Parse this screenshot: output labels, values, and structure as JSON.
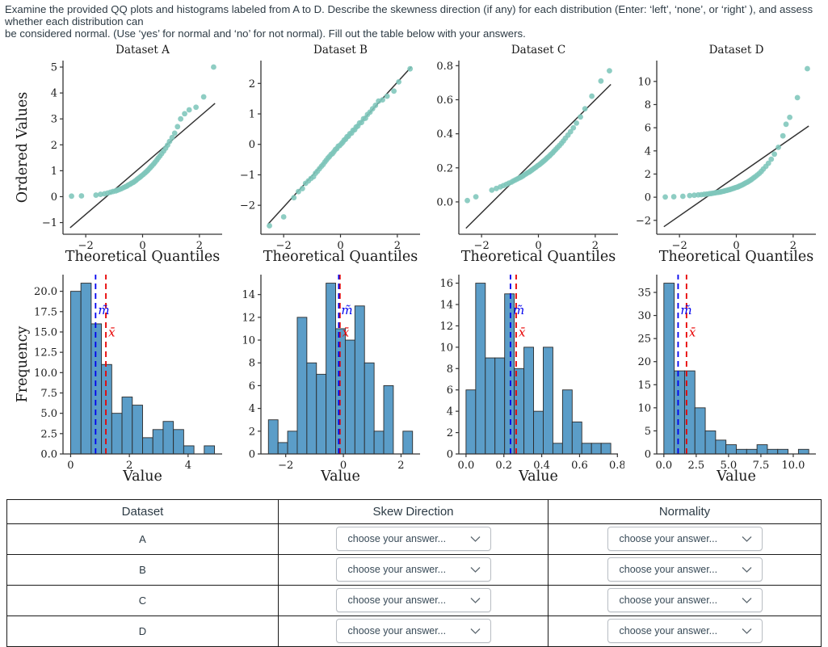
{
  "instructions": {
    "line1": "Examine the provided QQ plots and histograms labeled from A to D. Describe the skewness direction (if any) for each distribution (Enter: ‘left’, ‘none’, or ‘right’ ), and assess",
    "line2": "whether each distribution can",
    "line3": "be considered normal. (Use ‘yes’ for normal and ‘no’ for not normal). Fill out the table below with your answers."
  },
  "colors": {
    "point_teal": "#7EC6BB",
    "qq_line": "#333333",
    "bar_fill": "#5B9DC8",
    "bar_edge": "#2b2b2b",
    "median_blue": "#0000EE",
    "mean_red": "#E80000",
    "text_dark": "#2D3B45"
  },
  "chart_data": [
    {
      "type": "scatter",
      "chart_kind": "qq-plot",
      "title": "Dataset A",
      "xlabel": "Theoretical Quantiles",
      "ylabel": "Ordered Values",
      "xlim": [
        -2.8,
        2.8
      ],
      "ylim": [
        -1.45,
        5.25
      ],
      "xticks": {
        "v": [
          -2,
          0,
          2
        ],
        "l": [
          "−2",
          "0",
          "2"
        ]
      },
      "yticks": {
        "v": [
          -1,
          0,
          1,
          2,
          3,
          4,
          5
        ],
        "l": [
          "−1",
          "0",
          "1",
          "2",
          "3",
          "4",
          "5"
        ]
      },
      "line": [
        [
          -2.55,
          -1.2
        ],
        [
          2.55,
          3.6
        ]
      ],
      "points": [
        [
          -2.5,
          0.02
        ],
        [
          -2.15,
          0.03
        ],
        [
          -1.64,
          0.06
        ],
        [
          -1.48,
          0.09
        ],
        [
          -1.34,
          0.11
        ],
        [
          -1.23,
          0.14
        ],
        [
          -1.13,
          0.17
        ],
        [
          -1.04,
          0.2
        ],
        [
          -0.95,
          0.22
        ],
        [
          -0.88,
          0.25
        ],
        [
          -0.81,
          0.28
        ],
        [
          -0.74,
          0.31
        ],
        [
          -0.67,
          0.35
        ],
        [
          -0.61,
          0.38
        ],
        [
          -0.55,
          0.41
        ],
        [
          -0.5,
          0.45
        ],
        [
          -0.44,
          0.48
        ],
        [
          -0.39,
          0.52
        ],
        [
          -0.33,
          0.55
        ],
        [
          -0.28,
          0.59
        ],
        [
          -0.23,
          0.63
        ],
        [
          -0.18,
          0.68
        ],
        [
          -0.13,
          0.72
        ],
        [
          -0.08,
          0.76
        ],
        [
          -0.03,
          0.81
        ],
        [
          0.03,
          0.86
        ],
        [
          0.08,
          0.91
        ],
        [
          0.13,
          0.96
        ],
        [
          0.18,
          1.01
        ],
        [
          0.23,
          1.07
        ],
        [
          0.28,
          1.13
        ],
        [
          0.33,
          1.19
        ],
        [
          0.39,
          1.26
        ],
        [
          0.44,
          1.33
        ],
        [
          0.5,
          1.41
        ],
        [
          0.55,
          1.49
        ],
        [
          0.61,
          1.57
        ],
        [
          0.67,
          1.66
        ],
        [
          0.74,
          1.76
        ],
        [
          0.81,
          1.87
        ],
        [
          0.88,
          1.99
        ],
        [
          0.95,
          2.13
        ],
        [
          1.04,
          2.28
        ],
        [
          1.13,
          2.45
        ],
        [
          1.23,
          2.7
        ],
        [
          1.34,
          3.0
        ],
        [
          1.48,
          3.2
        ],
        [
          1.64,
          3.35
        ],
        [
          1.88,
          3.45
        ],
        [
          2.15,
          3.85
        ],
        [
          2.5,
          5.0
        ]
      ]
    },
    {
      "type": "scatter",
      "chart_kind": "qq-plot",
      "title": "Dataset B",
      "xlabel": "Theoretical Quantiles",
      "xlim": [
        -2.8,
        2.8
      ],
      "ylim": [
        -2.95,
        2.75
      ],
      "xticks": {
        "v": [
          -2,
          0,
          2
        ],
        "l": [
          "−2",
          "0",
          "2"
        ]
      },
      "yticks": {
        "v": [
          -2,
          -1,
          0,
          1,
          2
        ],
        "l": [
          "−2",
          "−1",
          "0",
          "1",
          "2"
        ]
      },
      "line": [
        [
          -2.55,
          -2.62
        ],
        [
          2.5,
          2.55
        ]
      ],
      "points": [
        [
          -2.5,
          -2.67
        ],
        [
          -2.0,
          -2.38
        ],
        [
          -1.64,
          -1.75
        ],
        [
          -1.48,
          -1.55
        ],
        [
          -1.34,
          -1.45
        ],
        [
          -1.23,
          -1.28
        ],
        [
          -1.13,
          -1.2
        ],
        [
          -1.04,
          -1.12
        ],
        [
          -0.95,
          -1.06
        ],
        [
          -0.88,
          -0.95
        ],
        [
          -0.81,
          -0.88
        ],
        [
          -0.74,
          -0.8
        ],
        [
          -0.67,
          -0.72
        ],
        [
          -0.61,
          -0.66
        ],
        [
          -0.55,
          -0.58
        ],
        [
          -0.5,
          -0.52
        ],
        [
          -0.44,
          -0.45
        ],
        [
          -0.39,
          -0.4
        ],
        [
          -0.33,
          -0.33
        ],
        [
          -0.28,
          -0.3
        ],
        [
          -0.23,
          -0.24
        ],
        [
          -0.18,
          -0.17
        ],
        [
          -0.13,
          -0.14
        ],
        [
          -0.08,
          -0.06
        ],
        [
          -0.03,
          -0.04
        ],
        [
          0.03,
          0.02
        ],
        [
          0.08,
          0.07
        ],
        [
          0.13,
          0.14
        ],
        [
          0.18,
          0.17
        ],
        [
          0.23,
          0.25
        ],
        [
          0.28,
          0.27
        ],
        [
          0.33,
          0.35
        ],
        [
          0.39,
          0.37
        ],
        [
          0.44,
          0.46
        ],
        [
          0.5,
          0.48
        ],
        [
          0.55,
          0.57
        ],
        [
          0.61,
          0.6
        ],
        [
          0.67,
          0.7
        ],
        [
          0.74,
          0.72
        ],
        [
          0.81,
          0.84
        ],
        [
          0.88,
          0.86
        ],
        [
          0.95,
          0.98
        ],
        [
          1.04,
          1.06
        ],
        [
          1.13,
          1.17
        ],
        [
          1.23,
          1.28
        ],
        [
          1.34,
          1.42
        ],
        [
          1.48,
          1.46
        ],
        [
          1.64,
          1.58
        ],
        [
          1.88,
          1.75
        ],
        [
          2.05,
          2.05
        ],
        [
          2.45,
          2.48
        ]
      ]
    },
    {
      "type": "scatter",
      "chart_kind": "qq-plot",
      "title": "Dataset C",
      "xlabel": "Theoretical Quantiles",
      "xlim": [
        -2.8,
        2.8
      ],
      "ylim": [
        -0.19,
        0.83
      ],
      "xticks": {
        "v": [
          -2,
          0,
          2
        ],
        "l": [
          "−2",
          "0",
          "2"
        ]
      },
      "yticks": {
        "v": [
          0.0,
          0.2,
          0.4,
          0.6,
          0.8
        ],
        "l": [
          "0.0",
          "0.2",
          "0.4",
          "0.6",
          "0.8"
        ]
      },
      "line": [
        [
          -2.55,
          -0.155
        ],
        [
          2.55,
          0.69
        ]
      ],
      "points": [
        [
          -2.5,
          0.008
        ],
        [
          -2.2,
          0.03
        ],
        [
          -1.64,
          0.069
        ],
        [
          -1.48,
          0.079
        ],
        [
          -1.34,
          0.088
        ],
        [
          -1.23,
          0.096
        ],
        [
          -1.13,
          0.103
        ],
        [
          -1.04,
          0.11
        ],
        [
          -0.95,
          0.116
        ],
        [
          -0.88,
          0.123
        ],
        [
          -0.81,
          0.129
        ],
        [
          -0.74,
          0.135
        ],
        [
          -0.67,
          0.141
        ],
        [
          -0.61,
          0.146
        ],
        [
          -0.55,
          0.152
        ],
        [
          -0.5,
          0.158
        ],
        [
          -0.44,
          0.164
        ],
        [
          -0.39,
          0.17
        ],
        [
          -0.33,
          0.175
        ],
        [
          -0.28,
          0.181
        ],
        [
          -0.23,
          0.187
        ],
        [
          -0.18,
          0.193
        ],
        [
          -0.13,
          0.199
        ],
        [
          -0.08,
          0.205
        ],
        [
          -0.03,
          0.212
        ],
        [
          0.03,
          0.218
        ],
        [
          0.08,
          0.225
        ],
        [
          0.13,
          0.232
        ],
        [
          0.18,
          0.239
        ],
        [
          0.23,
          0.246
        ],
        [
          0.28,
          0.254
        ],
        [
          0.33,
          0.262
        ],
        [
          0.39,
          0.27
        ],
        [
          0.44,
          0.279
        ],
        [
          0.5,
          0.288
        ],
        [
          0.55,
          0.298
        ],
        [
          0.61,
          0.308
        ],
        [
          0.67,
          0.319
        ],
        [
          0.74,
          0.331
        ],
        [
          0.81,
          0.344
        ],
        [
          0.88,
          0.358
        ],
        [
          0.95,
          0.374
        ],
        [
          1.04,
          0.392
        ],
        [
          1.13,
          0.412
        ],
        [
          1.23,
          0.435
        ],
        [
          1.34,
          0.463
        ],
        [
          1.48,
          0.499
        ],
        [
          1.64,
          0.547
        ],
        [
          1.88,
          0.621
        ],
        [
          2.2,
          0.71
        ],
        [
          2.5,
          0.77
        ]
      ]
    },
    {
      "type": "scatter",
      "chart_kind": "qq-plot",
      "title": "Dataset D",
      "xlabel": "Theoretical Quantiles",
      "xlim": [
        -2.8,
        2.8
      ],
      "ylim": [
        -3.2,
        11.8
      ],
      "xticks": {
        "v": [
          -2,
          0,
          2
        ],
        "l": [
          "−2",
          "0",
          "2"
        ]
      },
      "yticks": {
        "v": [
          -2,
          0,
          2,
          4,
          6,
          8,
          10
        ],
        "l": [
          "−2",
          "0",
          "2",
          "4",
          "6",
          "8",
          "10"
        ]
      },
      "line": [
        [
          -2.55,
          -2.55
        ],
        [
          2.55,
          6.15
        ]
      ],
      "points": [
        [
          -2.5,
          0.02
        ],
        [
          -2.2,
          0.04
        ],
        [
          -1.88,
          0.08
        ],
        [
          -1.64,
          0.14
        ],
        [
          -1.48,
          0.17
        ],
        [
          -1.34,
          0.2
        ],
        [
          -1.23,
          0.22
        ],
        [
          -1.13,
          0.25
        ],
        [
          -1.04,
          0.27
        ],
        [
          -0.95,
          0.3
        ],
        [
          -0.88,
          0.32
        ],
        [
          -0.81,
          0.35
        ],
        [
          -0.74,
          0.38
        ],
        [
          -0.67,
          0.41
        ],
        [
          -0.61,
          0.43
        ],
        [
          -0.55,
          0.46
        ],
        [
          -0.5,
          0.49
        ],
        [
          -0.44,
          0.52
        ],
        [
          -0.39,
          0.56
        ],
        [
          -0.33,
          0.59
        ],
        [
          -0.28,
          0.63
        ],
        [
          -0.23,
          0.66
        ],
        [
          -0.18,
          0.7
        ],
        [
          -0.13,
          0.74
        ],
        [
          -0.08,
          0.78
        ],
        [
          -0.03,
          0.83
        ],
        [
          0.03,
          0.87
        ],
        [
          0.08,
          0.92
        ],
        [
          0.13,
          0.98
        ],
        [
          0.18,
          1.03
        ],
        [
          0.23,
          1.09
        ],
        [
          0.28,
          1.16
        ],
        [
          0.33,
          1.23
        ],
        [
          0.39,
          1.3
        ],
        [
          0.44,
          1.38
        ],
        [
          0.5,
          1.47
        ],
        [
          0.55,
          1.56
        ],
        [
          0.61,
          1.67
        ],
        [
          0.67,
          1.78
        ],
        [
          0.74,
          1.92
        ],
        [
          0.81,
          2.06
        ],
        [
          0.88,
          2.23
        ],
        [
          0.95,
          2.43
        ],
        [
          1.04,
          2.66
        ],
        [
          1.13,
          2.93
        ],
        [
          1.23,
          3.28
        ],
        [
          1.34,
          3.72
        ],
        [
          1.48,
          4.31
        ],
        [
          1.64,
          5.3
        ],
        [
          1.75,
          6.3
        ],
        [
          1.88,
          6.9
        ],
        [
          2.15,
          8.6
        ],
        [
          2.5,
          11.1
        ]
      ]
    },
    {
      "type": "bar",
      "chart_kind": "histogram",
      "xlabel": "Value",
      "ylabel": "Frequency",
      "xlim": [
        -0.26,
        5.16
      ],
      "ylim": [
        0,
        22.05
      ],
      "xticks": {
        "v": [
          0,
          2,
          4
        ],
        "l": [
          "0",
          "2",
          "4"
        ]
      },
      "yticks": {
        "v": [
          0,
          2.5,
          5,
          7.5,
          10,
          12.5,
          15,
          17.5,
          20
        ],
        "l": [
          "0.0",
          "2.5",
          "5.0",
          "7.5",
          "10.0",
          "12.5",
          "15.0",
          "17.5",
          "20.0"
        ]
      },
      "bins": {
        "start": 0.0,
        "width": 0.35,
        "counts": [
          20,
          21,
          16,
          11,
          5,
          7,
          6,
          2,
          3,
          4,
          3,
          1,
          0,
          1
        ]
      },
      "median": 0.85,
      "mean": 1.2,
      "median_label": "m̃",
      "mean_label": "x̄"
    },
    {
      "type": "bar",
      "chart_kind": "histogram",
      "xlabel": "Value",
      "xlim": [
        -2.86,
        2.66
      ],
      "ylim": [
        0,
        15.75
      ],
      "xticks": {
        "v": [
          -2,
          0,
          2
        ],
        "l": [
          "−2",
          "0",
          "2"
        ]
      },
      "yticks": {
        "v": [
          0,
          2,
          4,
          6,
          8,
          10,
          12,
          14
        ],
        "l": [
          "0",
          "2",
          "4",
          "6",
          "8",
          "10",
          "12",
          "14"
        ]
      },
      "bins": {
        "start": -2.6,
        "width": 0.3333,
        "counts": [
          3,
          1,
          2,
          12,
          8,
          7,
          15,
          11,
          10,
          13,
          8,
          2,
          6,
          0,
          2
        ]
      },
      "median": -0.16,
      "mean": -0.12,
      "median_label": "m̃",
      "mean_label": "x̄"
    },
    {
      "type": "bar",
      "chart_kind": "histogram",
      "xlabel": "Value",
      "xlim": [
        -0.038,
        0.803
      ],
      "ylim": [
        0,
        16.8
      ],
      "xticks": {
        "v": [
          0.0,
          0.2,
          0.4,
          0.6,
          0.8
        ],
        "l": [
          "0.0",
          "0.2",
          "0.4",
          "0.6",
          "0.8"
        ]
      },
      "yticks": {
        "v": [
          0,
          2,
          4,
          6,
          8,
          10,
          12,
          14,
          16
        ],
        "l": [
          "0",
          "2",
          "4",
          "6",
          "8",
          "10",
          "12",
          "14",
          "16"
        ]
      },
      "bins": {
        "start": 0.0,
        "width": 0.051,
        "counts": [
          6,
          16,
          9,
          9,
          15,
          8,
          10,
          4,
          10,
          1,
          6,
          3,
          1,
          1,
          1
        ]
      },
      "median": 0.235,
      "mean": 0.265,
      "median_label": "m̃",
      "mean_label": "x̄"
    },
    {
      "type": "bar",
      "chart_kind": "histogram",
      "xlabel": "Value",
      "xlim": [
        -0.55,
        11.75
      ],
      "ylim": [
        0,
        38.85
      ],
      "xticks": {
        "v": [
          0.0,
          2.5,
          5.0,
          7.5,
          10.0
        ],
        "l": [
          "0.0",
          "2.5",
          "5.0",
          "7.5",
          "10.0"
        ]
      },
      "yticks": {
        "v": [
          0,
          5,
          10,
          15,
          20,
          25,
          30,
          35
        ],
        "l": [
          "0",
          "5",
          "10",
          "15",
          "20",
          "25",
          "30",
          "35"
        ]
      },
      "bins": {
        "start": 0.0,
        "width": 0.8,
        "counts": [
          37,
          18,
          18,
          10,
          5,
          3,
          2,
          1,
          1,
          2,
          1,
          1,
          0,
          1
        ]
      },
      "median": 1.1,
      "mean": 1.75,
      "median_label": "m̃",
      "mean_label": "x̄"
    }
  ],
  "table": {
    "headers": [
      "Dataset",
      "Skew Direction",
      "Normality"
    ],
    "select_placeholder": "choose your answer...",
    "rows": [
      {
        "dataset": "A"
      },
      {
        "dataset": "B"
      },
      {
        "dataset": "C"
      },
      {
        "dataset": "D"
      }
    ]
  }
}
